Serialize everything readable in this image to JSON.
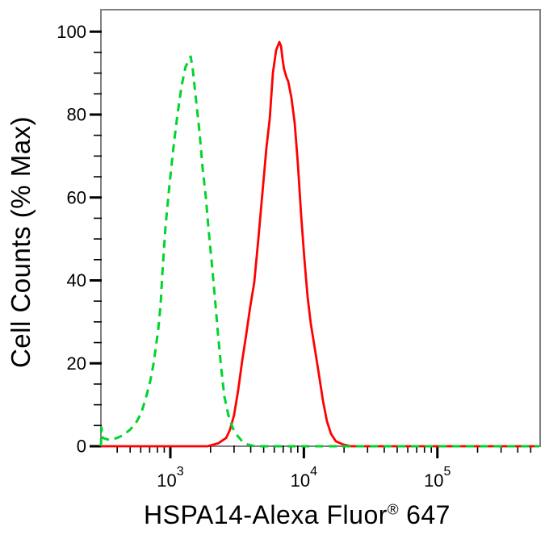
{
  "figure": {
    "background": "#ffffff"
  },
  "chart_data": {
    "type": "line",
    "subtype": "flow-cytometry-histogram",
    "title": "",
    "xlabel_main": "HSPA14-Alexa Fluor",
    "xlabel_registered": "®",
    "xlabel_suffix": "647",
    "ylabel": "Cell Counts (% Max)",
    "x_scale": "log",
    "x_range": [
      302,
      588000
    ],
    "ylim": [
      0,
      105.3
    ],
    "grid": false,
    "legend_position": "none",
    "frame_color": "#808080",
    "tick_color": "#000000",
    "text_color": "#000000",
    "x_major_ticks": [
      {
        "value": 1000,
        "base": "10",
        "exp": "3"
      },
      {
        "value": 10000,
        "base": "10",
        "exp": "4"
      },
      {
        "value": 100000,
        "base": "10",
        "exp": "5"
      }
    ],
    "x_minor_ticks": [
      400,
      500,
      600,
      700,
      800,
      900,
      2000,
      3000,
      4000,
      5000,
      6000,
      7000,
      8000,
      9000,
      20000,
      30000,
      40000,
      50000,
      60000,
      70000,
      80000,
      90000,
      200000,
      300000,
      400000,
      500000
    ],
    "y_major_ticks": [
      0,
      20,
      40,
      60,
      80,
      100
    ],
    "y_minor_ticks": [
      5,
      10,
      15,
      25,
      30,
      35,
      45,
      50,
      55,
      65,
      70,
      75,
      85,
      90,
      95
    ],
    "series": [
      {
        "name": "red-solid-hspa14",
        "color": "#FF0000",
        "style": "solid",
        "peak": {
          "x": 6550,
          "y": 97.5
        },
        "points": [
          [
            302,
            0
          ],
          [
            1900,
            0
          ],
          [
            2280,
            0.7
          ],
          [
            2620,
            2
          ],
          [
            2800,
            4
          ],
          [
            3000,
            7.5
          ],
          [
            3220,
            13.5
          ],
          [
            3450,
            20.5
          ],
          [
            3700,
            27
          ],
          [
            3960,
            33.5
          ],
          [
            4250,
            39.5
          ],
          [
            4560,
            50
          ],
          [
            4890,
            61
          ],
          [
            5240,
            72
          ],
          [
            5550,
            79
          ],
          [
            5860,
            90
          ],
          [
            6200,
            95.5
          ],
          [
            6550,
            97.5
          ],
          [
            6750,
            96.5
          ],
          [
            6920,
            93.5
          ],
          [
            7100,
            91
          ],
          [
            7400,
            89
          ],
          [
            7630,
            88
          ],
          [
            8070,
            84
          ],
          [
            8530,
            78
          ],
          [
            9020,
            68
          ],
          [
            9530,
            56
          ],
          [
            10100,
            45
          ],
          [
            10660,
            36
          ],
          [
            11270,
            29.5
          ],
          [
            12080,
            23.5
          ],
          [
            12940,
            17.5
          ],
          [
            13890,
            11
          ],
          [
            14890,
            6
          ],
          [
            15960,
            3
          ],
          [
            17340,
            1.2
          ],
          [
            19700,
            0.4
          ],
          [
            22600,
            0
          ],
          [
            580000,
            0
          ]
        ]
      },
      {
        "name": "green-dashed-control",
        "color": "#00D42C",
        "style": "dashed",
        "peak": {
          "x": 1420,
          "y": 94
        },
        "points": [
          [
            302,
            0
          ],
          [
            305,
            4.5
          ],
          [
            312,
            2
          ],
          [
            350,
            1.5
          ],
          [
            400,
            2
          ],
          [
            450,
            2.8
          ],
          [
            500,
            4
          ],
          [
            550,
            5.5
          ],
          [
            605,
            8
          ],
          [
            660,
            12
          ],
          [
            710,
            16
          ],
          [
            750,
            20
          ],
          [
            810,
            28
          ],
          [
            845,
            34
          ],
          [
            872,
            42
          ],
          [
            920,
            53
          ],
          [
            985,
            63
          ],
          [
            1055,
            72
          ],
          [
            1130,
            80
          ],
          [
            1215,
            87
          ],
          [
            1300,
            91.5
          ],
          [
            1420,
            94
          ],
          [
            1470,
            91
          ],
          [
            1540,
            85
          ],
          [
            1650,
            76
          ],
          [
            1745,
            67
          ],
          [
            1845,
            60
          ],
          [
            1925,
            53
          ],
          [
            2060,
            43
          ],
          [
            2180,
            34
          ],
          [
            2275,
            27
          ],
          [
            2400,
            19
          ],
          [
            2540,
            12
          ],
          [
            2720,
            7.5
          ],
          [
            2920,
            4.5
          ],
          [
            3130,
            2.8
          ],
          [
            3450,
            1.2
          ],
          [
            3800,
            0.4
          ],
          [
            4300,
            0
          ],
          [
            580000,
            0
          ]
        ]
      }
    ]
  }
}
